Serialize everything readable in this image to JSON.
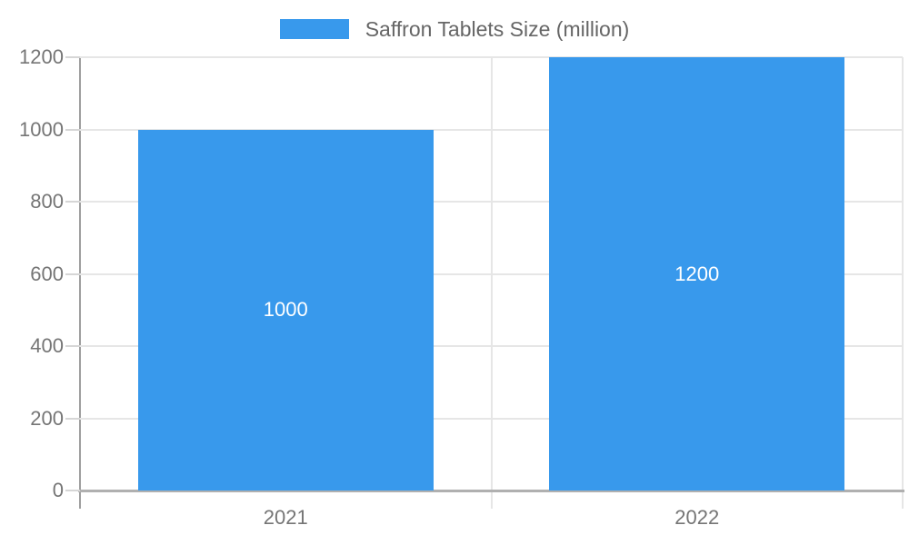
{
  "chart_data": {
    "type": "bar",
    "categories": [
      "2021",
      "2022"
    ],
    "series": [
      {
        "name": "Saffron Tablets Size (million)",
        "values": [
          1000,
          1200
        ],
        "color": "#3899ec"
      }
    ],
    "data_labels": [
      "1000",
      "1200"
    ],
    "title": "",
    "xlabel": "",
    "ylabel": "",
    "ylim": [
      0,
      1200
    ],
    "yticks": [
      0,
      200,
      400,
      600,
      800,
      1000,
      1200
    ],
    "ytick_labels": [
      "0",
      "200",
      "400",
      "600",
      "800",
      "1000",
      "1200"
    ],
    "grid": true,
    "legend_position": "top-center"
  },
  "colors": {
    "bar": "#3899ec",
    "grid": "#e6e6e6",
    "baseline": "#b0b0b0",
    "axis_line": "#9e9e9e",
    "tick": "#d6d6d6",
    "axis_text": "#757575",
    "legend_text": "#666666",
    "bar_label_text": "#ffffff",
    "background": "#ffffff"
  }
}
